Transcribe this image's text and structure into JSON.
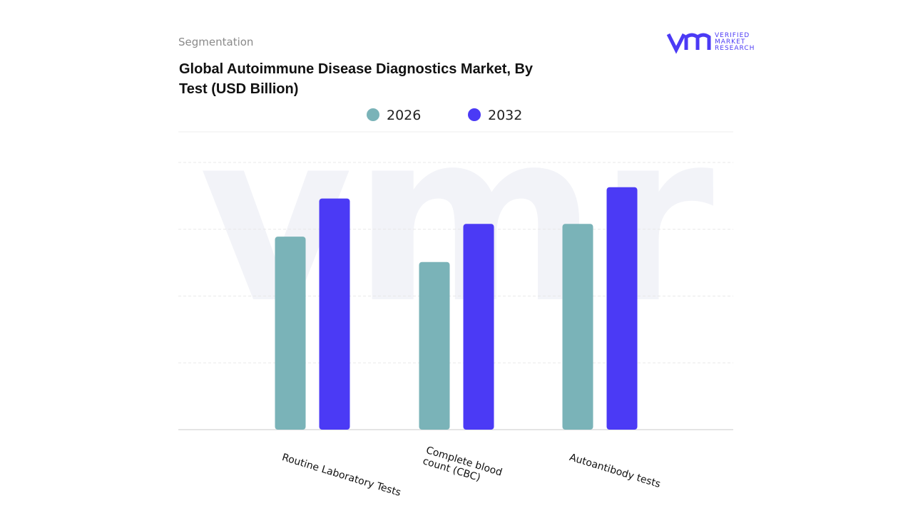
{
  "header": {
    "section": "Segmentation",
    "logo": [
      "VERIFIED",
      "MARKET",
      "RESEARCH"
    ]
  },
  "chart_data": {
    "type": "bar",
    "title": "Global Autoimmune Disease Diagnostics Market, By Test (USD Billion)",
    "categories": [
      "Routine Laboratory Tests",
      "Complete blood count (CBC)",
      "Autoantibody tests"
    ],
    "series": [
      {
        "name": "2026",
        "color": "#7ab3b8",
        "values": [
          2.89,
          2.51,
          3.08
        ]
      },
      {
        "name": "2032",
        "color": "#4b3af5",
        "values": [
          3.46,
          3.08,
          3.63
        ]
      }
    ],
    "ylim": [
      0,
      4
    ],
    "yticks": [
      0,
      1,
      2,
      3,
      4
    ],
    "grid": true,
    "legend": "top"
  }
}
